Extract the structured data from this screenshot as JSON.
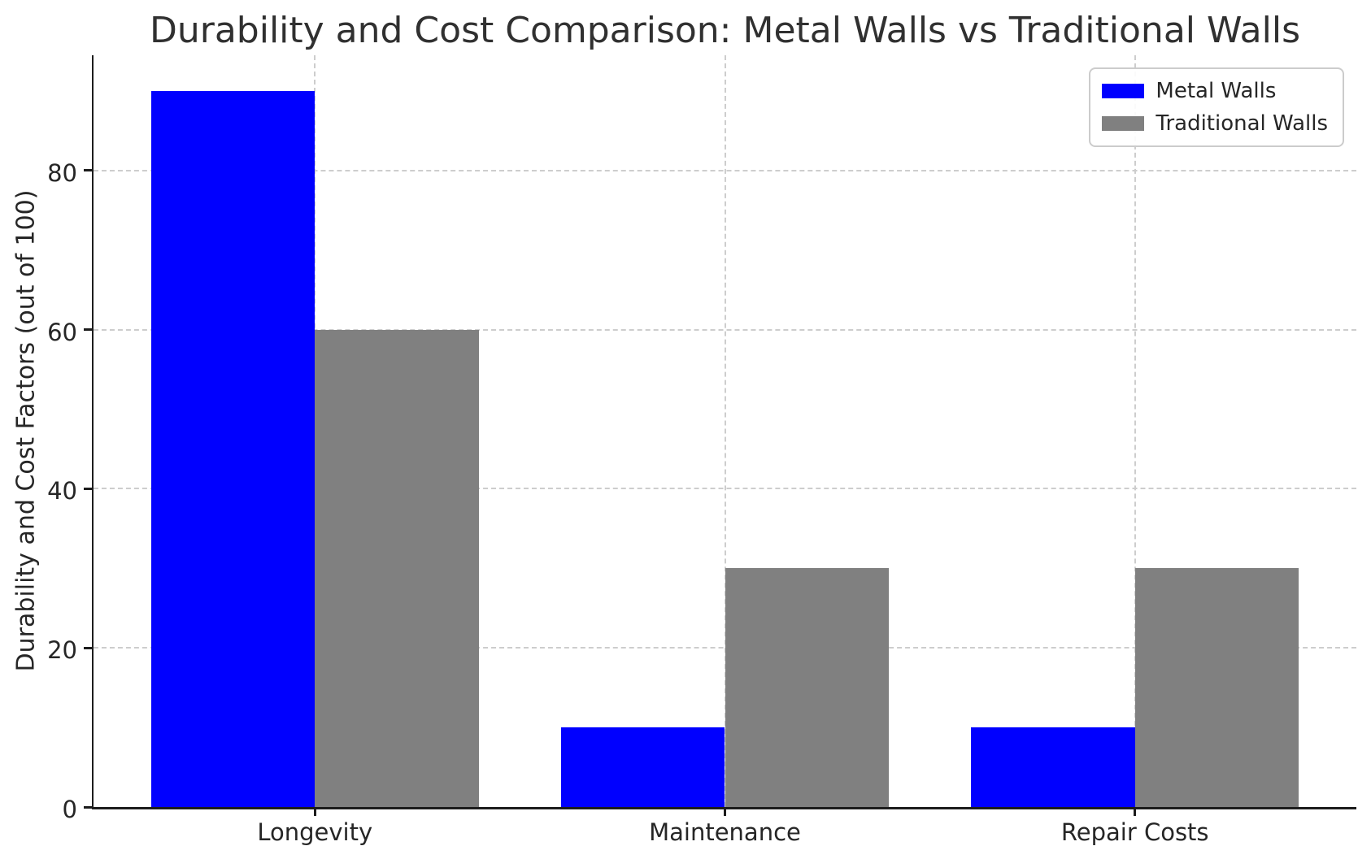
{
  "chart_data": {
    "type": "bar",
    "title": "Durability and Cost Comparison: Metal Walls vs Traditional Walls",
    "ylabel": "Durability and Cost Factors (out of 100)",
    "xlabel": "",
    "categories": [
      "Longevity",
      "Maintenance",
      "Repair Costs"
    ],
    "series": [
      {
        "name": "Metal Walls",
        "color": "#0000ff",
        "values": [
          90,
          10,
          10
        ]
      },
      {
        "name": "Traditional Walls",
        "color": "#808080",
        "values": [
          60,
          30,
          30
        ]
      }
    ],
    "ylim": [
      0,
      94.5
    ],
    "yticks": [
      0,
      20,
      40,
      60,
      80
    ],
    "grid": true,
    "grid_style": "dashed",
    "grid_color": "#cdcdcd",
    "spine_color": "#1c1c1c",
    "legend_position": "top-right",
    "bar_width_fraction": 0.4
  }
}
